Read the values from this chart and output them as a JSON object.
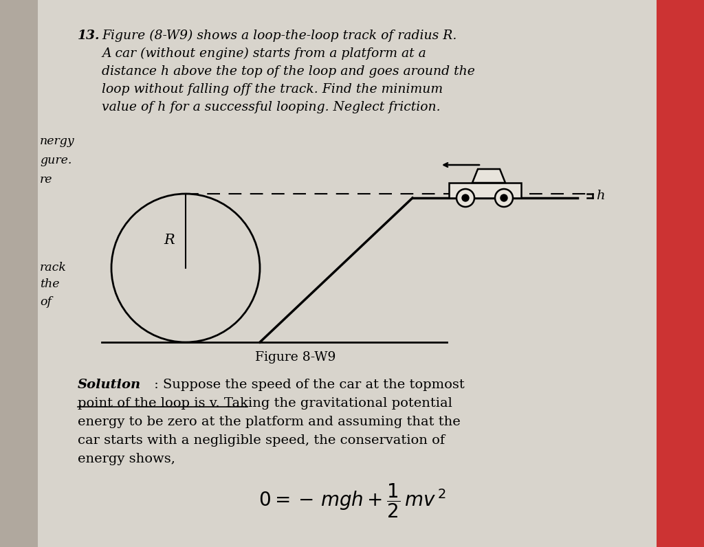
{
  "bg_color_left": "#b8b0a8",
  "bg_color_right": "#cc3333",
  "page_bg": "#d8d4cc",
  "title_num": "13.",
  "problem_line1": "Figure (8-W9) shows a loop-the-loop track of radius R.",
  "problem_line2": "A car (without engine) starts from a platform at a",
  "problem_line3": "distance h above the top of the loop and goes around the",
  "problem_line4": "loop without falling off the track. Find the minimum",
  "problem_line5": "value of h for a successful looping. Neglect friction.",
  "fig_caption": "Figure 8-W9",
  "sol_bold": "Solution",
  "sol_rest_line1": " : Suppose the speed of the car at the topmost",
  "sol_line2": "    point of the loop is v. Taking the gravitational potential",
  "sol_line3": "    energy to be zero at the platform and assuming that the",
  "sol_line4": "    car starts with a negligible speed, the conservation of",
  "sol_line5": "    energy shows,",
  "margin_words": [
    "nergy",
    "gure.",
    "re",
    "rack",
    "the",
    "of"
  ],
  "R_label": "R",
  "h_label": "h"
}
